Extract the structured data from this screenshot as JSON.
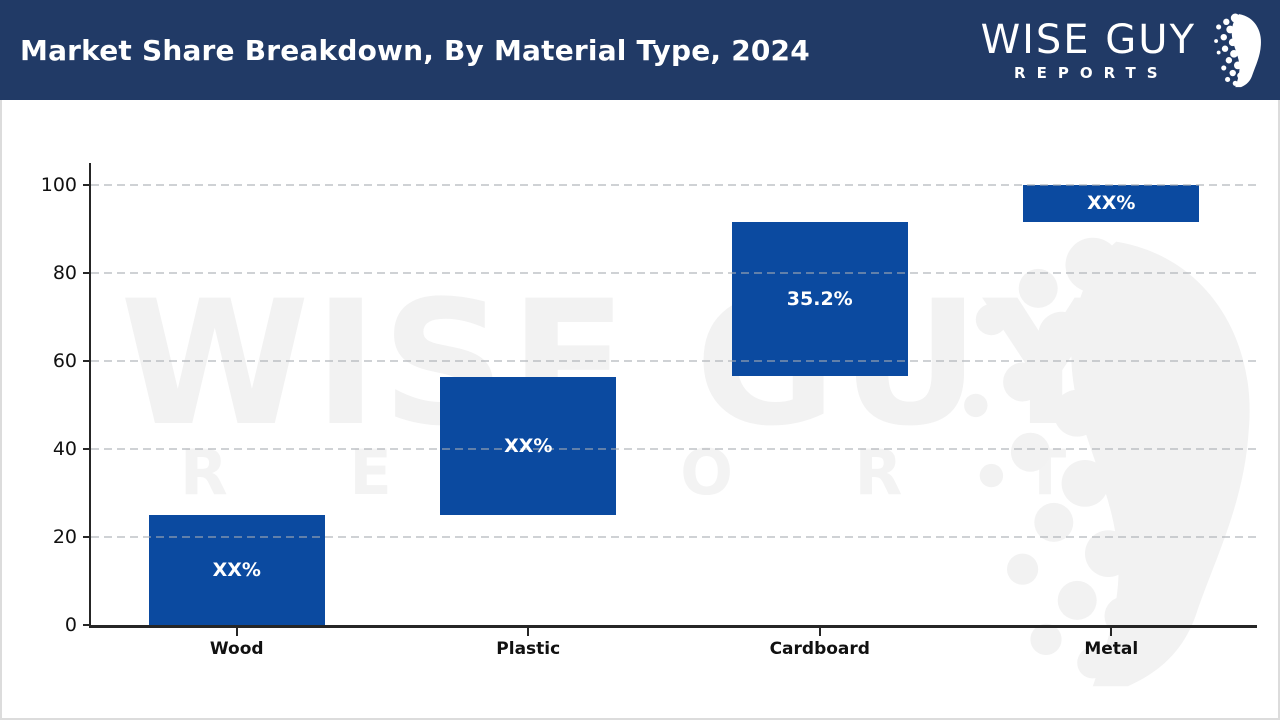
{
  "header": {
    "title": "Market Share Breakdown, By Material Type, 2024",
    "logo": {
      "line1": "WISE GUY",
      "line2": "REPORTS",
      "icon": "face-profile-dots-icon"
    }
  },
  "watermark": {
    "line1": "WISE GUY",
    "line2": "R E P O R T S",
    "icon": "face-profile-dots-icon"
  },
  "colors": {
    "header_bg": "#213a66",
    "bar_fill": "#0b4aa0",
    "bar_label": "#ffffff",
    "axis": "#262626",
    "tick_label": "#111111",
    "grid": "#a8acb2",
    "watermark": "#f2f2f2",
    "frame_border": "#dcdcdc",
    "background": "#ffffff"
  },
  "chart_data": {
    "type": "bar",
    "subtype": "floating-waterfall",
    "title": "Market Share Breakdown, By Material Type, 2024",
    "xlabel": "",
    "ylabel": "",
    "categories": [
      "Wood",
      "Plastic",
      "Cardboard",
      "Metal"
    ],
    "segments": [
      {
        "category": "Wood",
        "from": 0,
        "to": 25,
        "label": "XX%"
      },
      {
        "category": "Plastic",
        "from": 25,
        "to": 56.4,
        "label": "XX%"
      },
      {
        "category": "Cardboard",
        "from": 56.5,
        "to": 91.7,
        "label": "35.2%"
      },
      {
        "category": "Metal",
        "from": 91.7,
        "to": 100,
        "label": "XX%"
      }
    ],
    "yticks": [
      0,
      20,
      40,
      60,
      80,
      100
    ],
    "ylim": [
      0,
      105
    ],
    "grid": "horizontal-dashed-over-bars",
    "legend": "none"
  }
}
